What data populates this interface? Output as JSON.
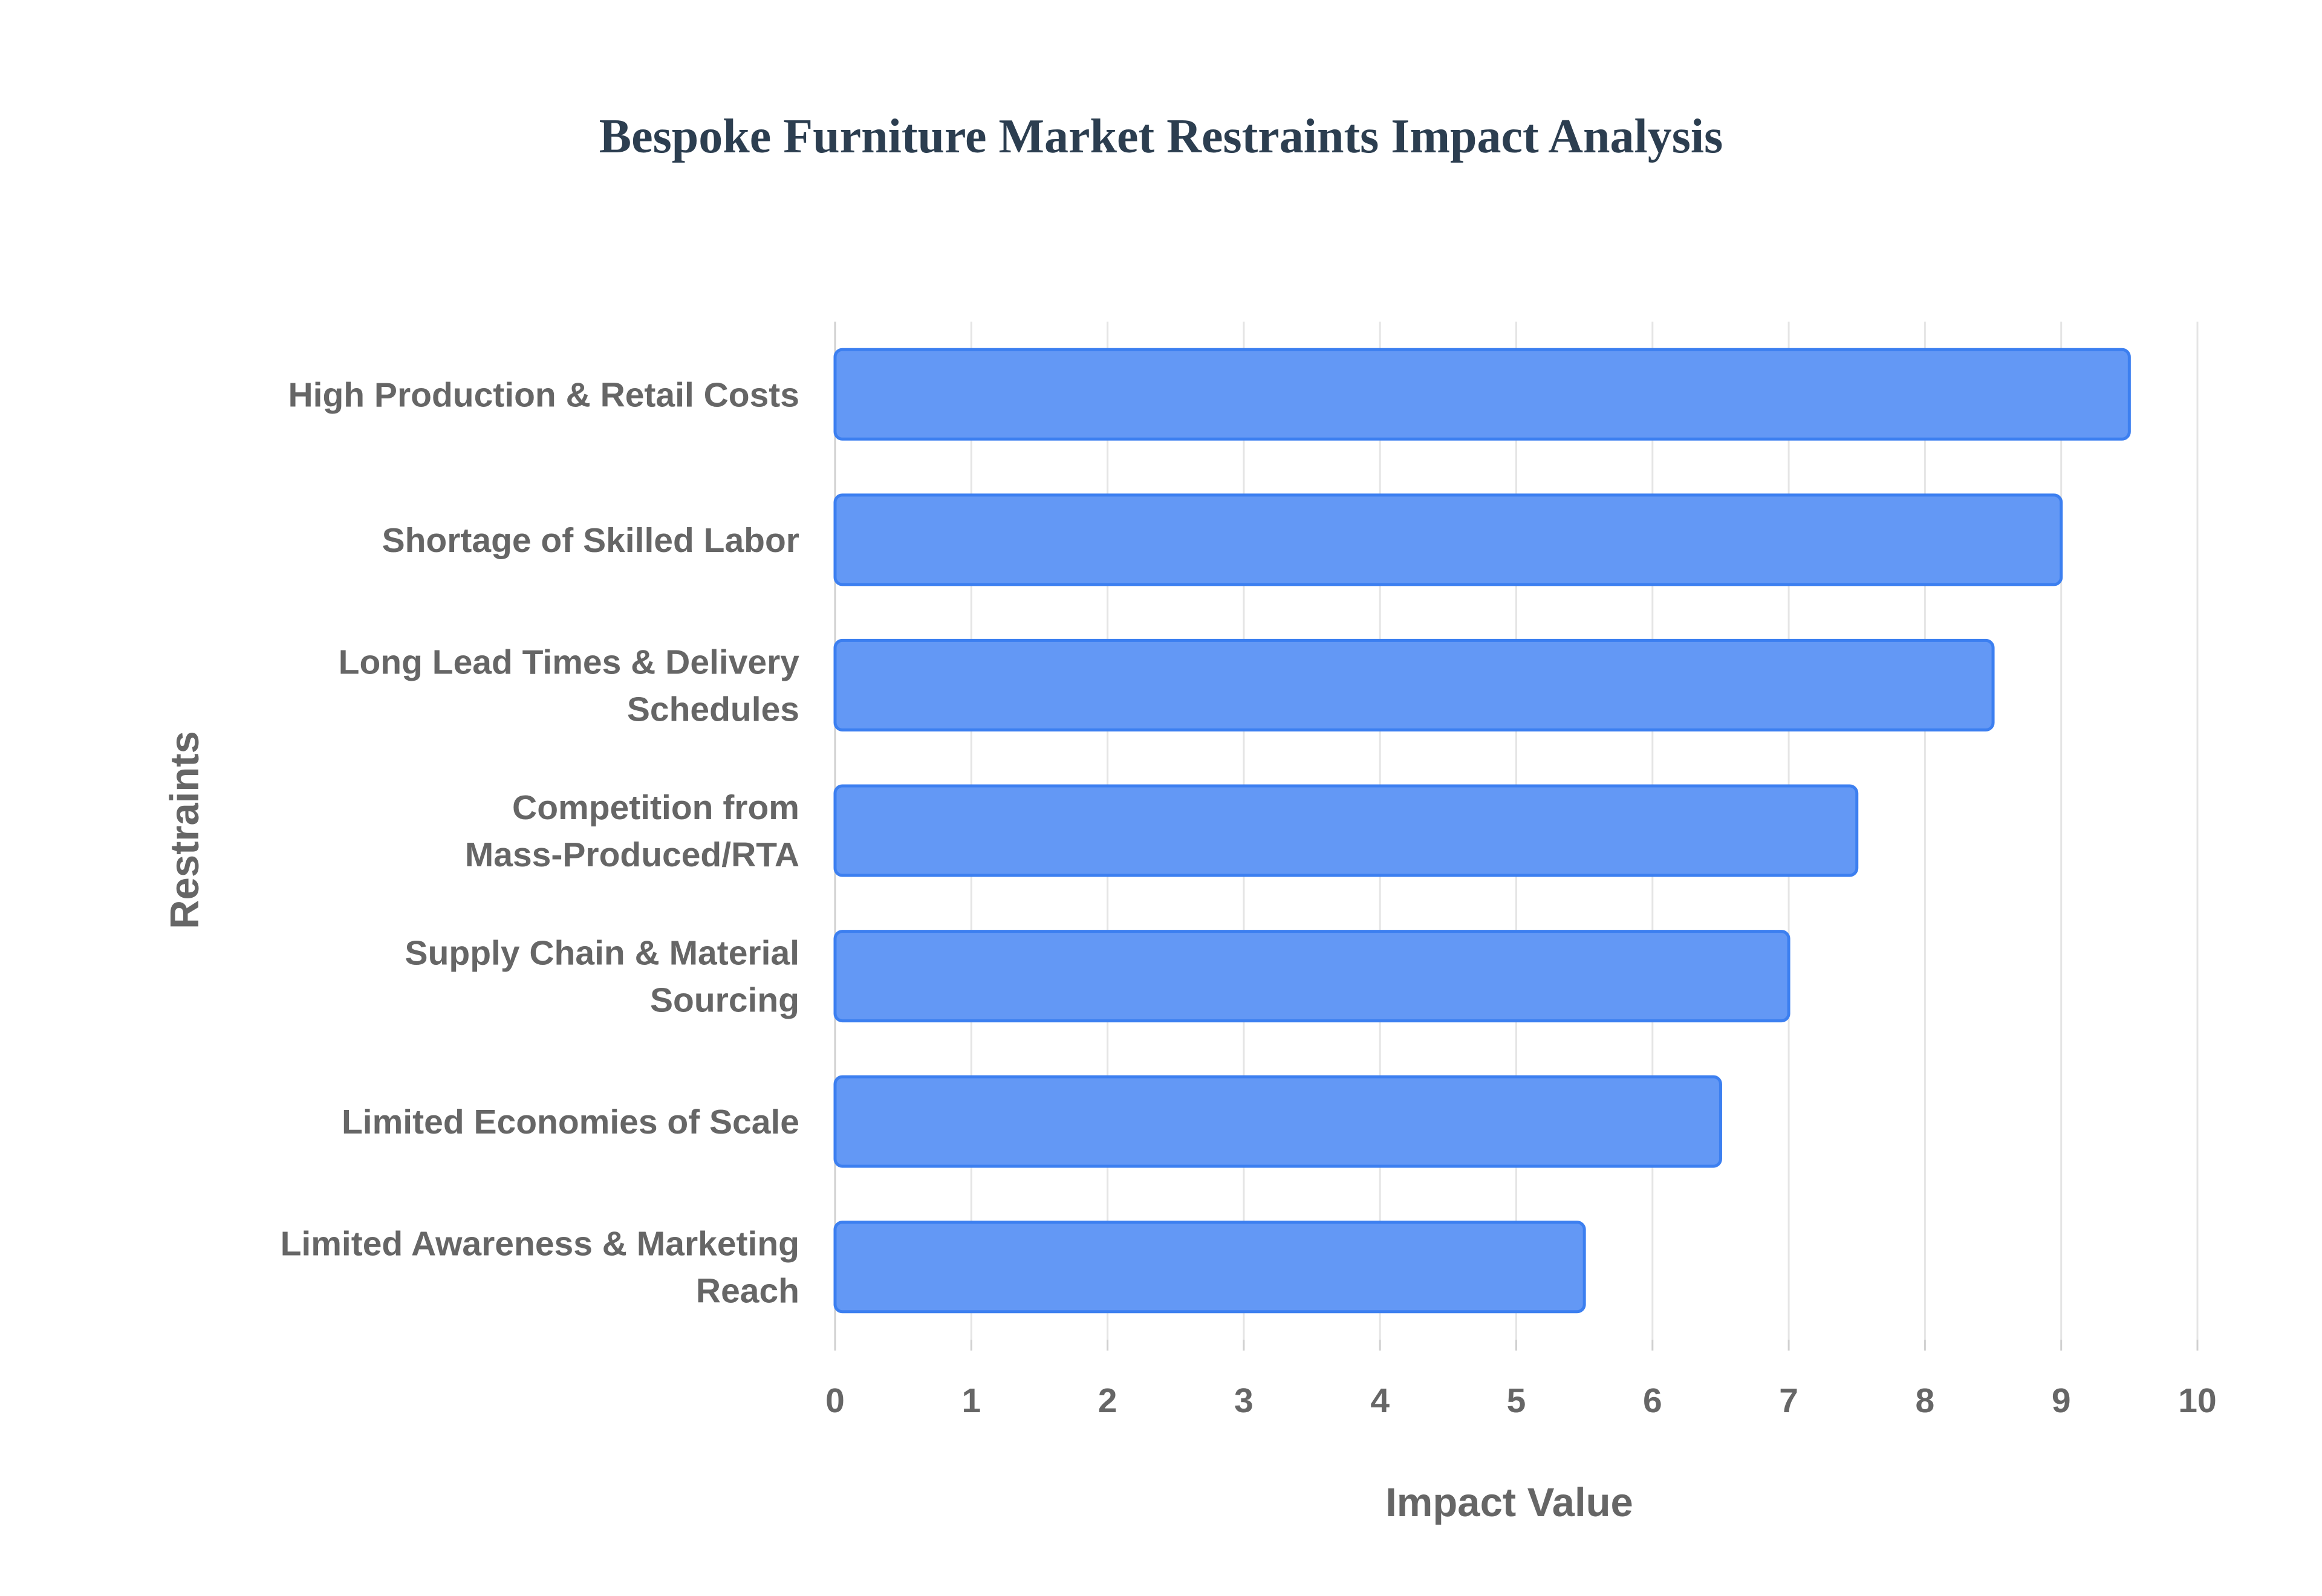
{
  "chart_data": {
    "type": "bar",
    "orientation": "horizontal",
    "title": "Bespoke Furniture Market Restraints Impact Analysis",
    "xlabel": "Impact Value",
    "ylabel": "Restraints",
    "xlim": [
      0,
      10
    ],
    "grid": true,
    "legend": "none",
    "categories": [
      [
        "High Production & Retail Costs"
      ],
      [
        "Shortage of Skilled Labor"
      ],
      [
        "Long Lead Times & Delivery",
        "Schedules"
      ],
      [
        "Competition from",
        "Mass-Produced/RTA"
      ],
      [
        "Supply Chain & Material",
        "Sourcing"
      ],
      [
        "Limited Economies of Scale"
      ],
      [
        "Limited Awareness & Marketing",
        "Reach"
      ]
    ],
    "values": [
      9.5,
      9.0,
      8.5,
      7.5,
      7.0,
      6.5,
      5.5
    ],
    "ticks": [
      "0",
      "1",
      "2",
      "3",
      "4",
      "5",
      "6",
      "7",
      "8",
      "9",
      "10"
    ],
    "colors": {
      "bar_fill": "#6398f5",
      "bar_stroke": "#3c7ff0",
      "title": "#2c3e50",
      "label": "#666666"
    }
  }
}
